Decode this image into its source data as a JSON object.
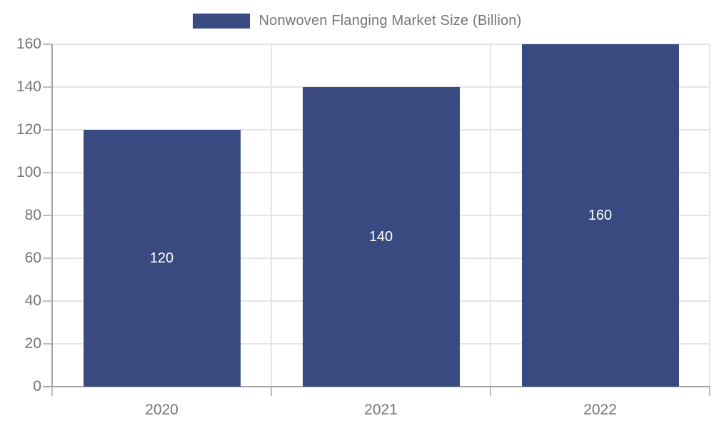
{
  "chart_data": {
    "type": "bar",
    "title": "",
    "legend": {
      "label": "Nonwoven Flanging Market Size (Billion)",
      "position": "top"
    },
    "categories": [
      "2020",
      "2021",
      "2022"
    ],
    "values": [
      120,
      140,
      160
    ],
    "data_labels": [
      "120",
      "140",
      "160"
    ],
    "yticks": [
      0,
      20,
      40,
      60,
      80,
      100,
      120,
      140,
      160
    ],
    "ylim": [
      0,
      160
    ],
    "xlabel": "",
    "ylabel": "",
    "grid": true,
    "data_label_position": "inside-center",
    "colors": {
      "bar": "#394A80",
      "grid": "#e5e5e5",
      "axis": "#a3a3a3",
      "tick": "#bdbdbd",
      "text": "#757575",
      "value_label": "#ffffff",
      "background": "#ffffff"
    }
  }
}
